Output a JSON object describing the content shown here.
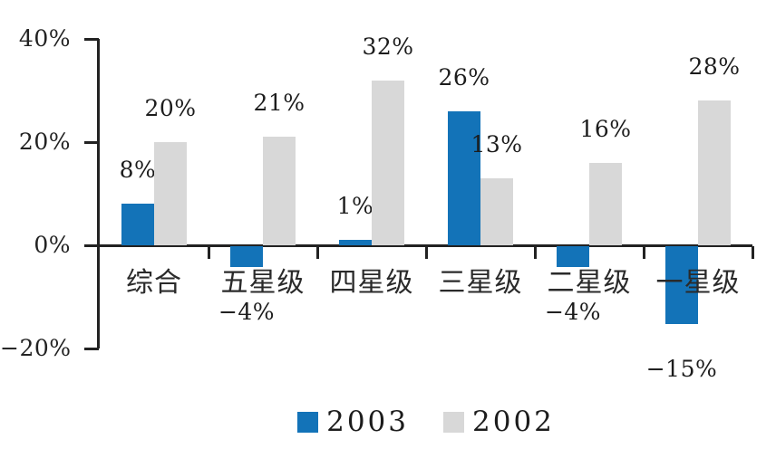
{
  "chart_data": {
    "type": "bar",
    "categories": [
      "综合",
      "五星级",
      "四星级",
      "三星级",
      "二星级",
      "一星级"
    ],
    "series": [
      {
        "name": "2003",
        "color": "#1373b8",
        "values": [
          8,
          -4,
          1,
          26,
          -4,
          -15
        ],
        "labels": [
          "8%",
          "−4%",
          "1%",
          "26%",
          "−4%",
          "−15%"
        ]
      },
      {
        "name": "2002",
        "color": "#d8d8d8",
        "values": [
          20,
          21,
          32,
          13,
          16,
          28
        ],
        "labels": [
          "20%",
          "21%",
          "32%",
          "13%",
          "16%",
          "28%"
        ]
      }
    ],
    "title": "",
    "xlabel": "",
    "ylabel": "",
    "ylim": [
      -20,
      40
    ],
    "yticks": [
      {
        "value": 40,
        "label": "40%"
      },
      {
        "value": 20,
        "label": "20%"
      },
      {
        "value": 0,
        "label": "0%"
      },
      {
        "value": -20,
        "label": "−20%"
      }
    ],
    "grid": false,
    "legend_position": "bottom",
    "axis_color": "#222222",
    "label_color": "#1c1c1c",
    "background": "#ffffff"
  }
}
